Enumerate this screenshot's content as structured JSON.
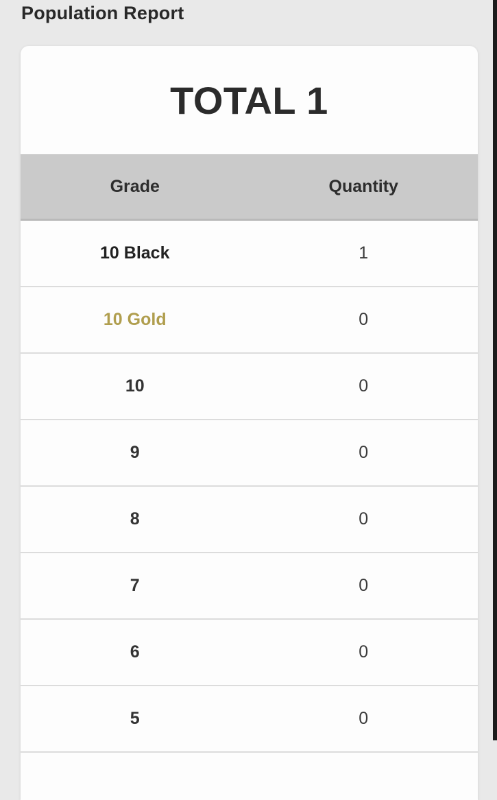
{
  "page": {
    "title": "Population Report"
  },
  "card": {
    "total_label": "TOTAL 1",
    "table": {
      "columns": [
        "Grade",
        "Quantity"
      ],
      "rows": [
        {
          "grade": "10 Black",
          "quantity": "1",
          "style": "black"
        },
        {
          "grade": "10 Gold",
          "quantity": "0",
          "style": "gold"
        },
        {
          "grade": "10",
          "quantity": "0",
          "style": "plain"
        },
        {
          "grade": "9",
          "quantity": "0",
          "style": "plain"
        },
        {
          "grade": "8",
          "quantity": "0",
          "style": "plain"
        },
        {
          "grade": "7",
          "quantity": "0",
          "style": "plain"
        },
        {
          "grade": "6",
          "quantity": "0",
          "style": "plain"
        },
        {
          "grade": "5",
          "quantity": "0",
          "style": "plain"
        }
      ]
    }
  },
  "colors": {
    "gold": "#b09e4e",
    "page_background": "#e9e9e9",
    "card_background": "#fdfdfd",
    "table_header_background": "#cacaca",
    "row_divider": "#dcdcdc",
    "text_dark": "#2d2d2d",
    "screen_edge": "#1c1c1c"
  }
}
